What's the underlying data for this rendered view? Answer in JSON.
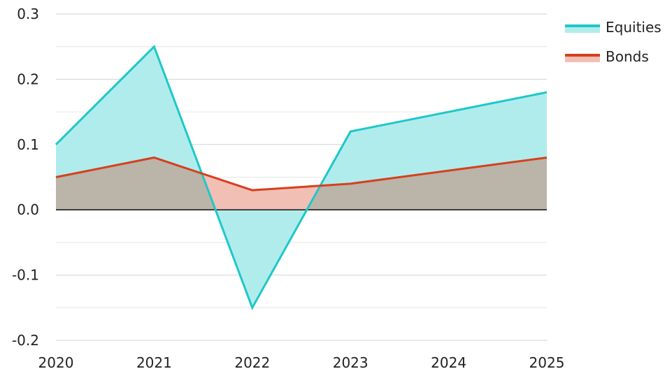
{
  "chart_data": {
    "type": "area",
    "x": [
      2020,
      2021,
      2022,
      2023,
      2024,
      2025
    ],
    "xticks": [
      "2020",
      "2021",
      "2022",
      "2023",
      "2024",
      "2025"
    ],
    "ylim": [
      -0.2,
      0.3
    ],
    "yticks": [
      "-0.2",
      "-0.1",
      "0.0",
      "0.1",
      "0.2",
      "0.3"
    ],
    "ytick_values": [
      -0.2,
      -0.1,
      0.0,
      0.1,
      0.2,
      0.3
    ],
    "minor_grid_values": [
      -0.15,
      -0.05,
      0.05,
      0.15,
      0.25
    ],
    "grid": true,
    "legend_position": "top-right",
    "series": [
      {
        "name": "Equities",
        "values": [
          0.1,
          0.25,
          -0.15,
          0.12,
          0.15,
          0.18
        ],
        "color": "#1ec8c8",
        "fill": "#b1ecec"
      },
      {
        "name": "Bonds",
        "values": [
          0.05,
          0.08,
          0.03,
          0.04,
          0.06,
          0.08
        ],
        "color": "#d6401e",
        "fill": "#f2bfb4"
      }
    ],
    "overlap_color": "#bbb4a8"
  }
}
